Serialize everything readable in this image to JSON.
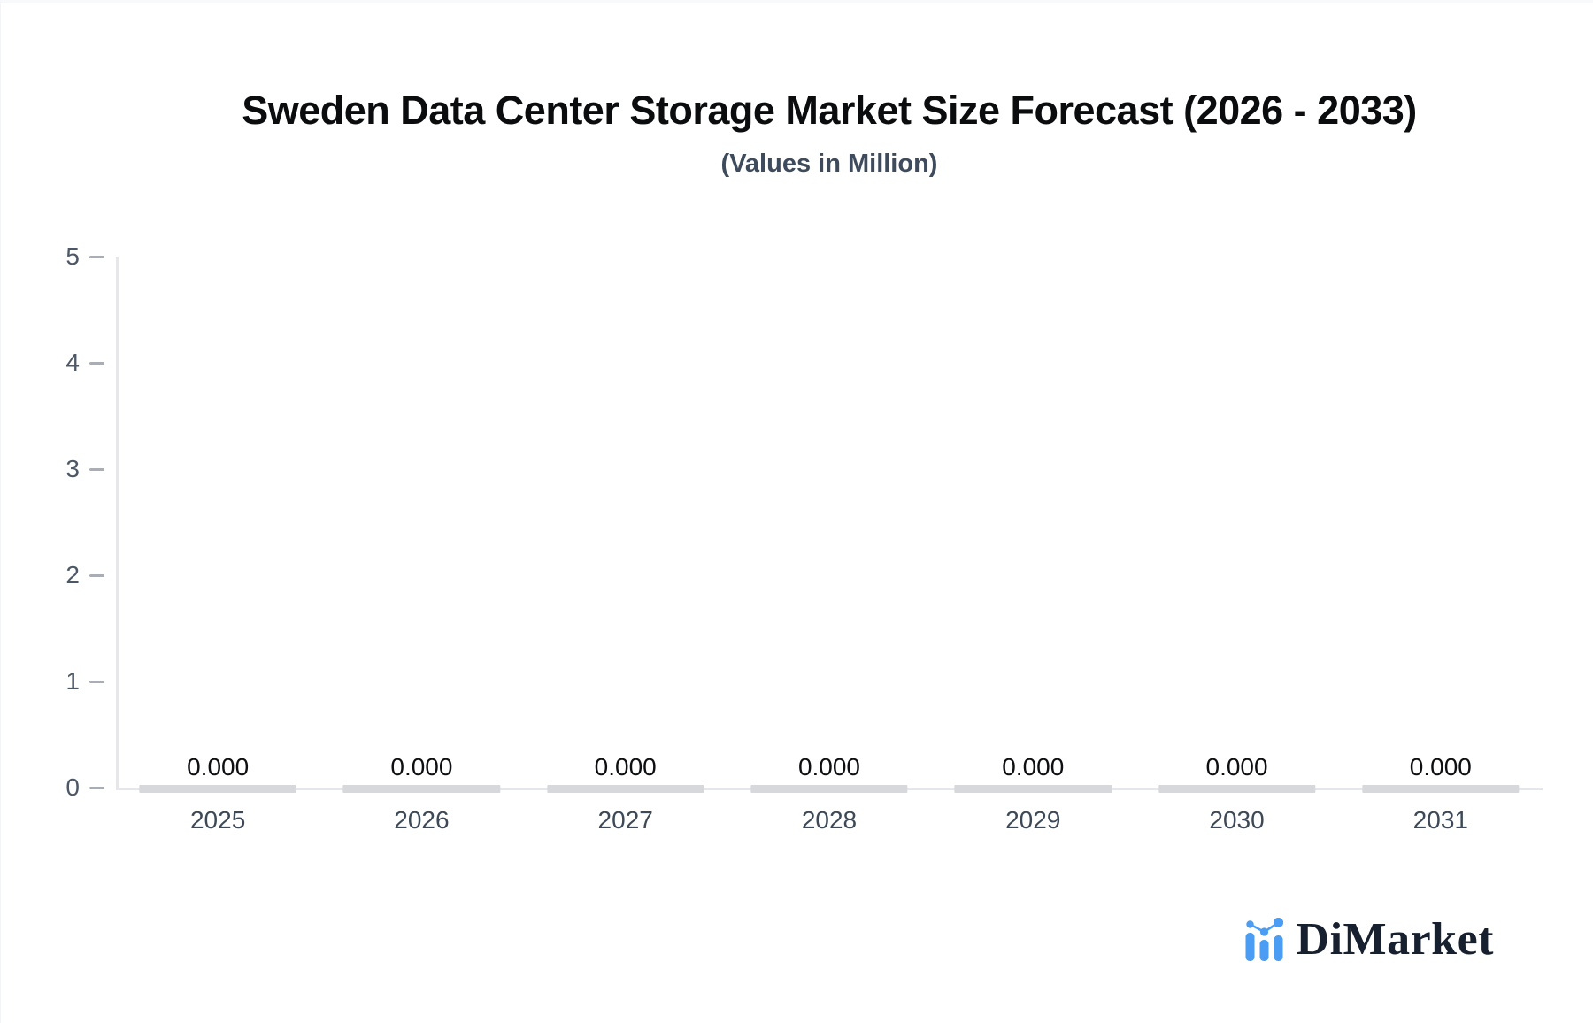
{
  "header": {
    "title": "Sweden Data Center Storage Market Size Forecast (2026 - 2033)",
    "subtitle": "(Values in Million)"
  },
  "chart_data": {
    "type": "bar",
    "title": "Sweden Data Center Storage Market Size Forecast (2026 - 2033)",
    "subtitle": "(Values in Million)",
    "categories": [
      "2025",
      "2026",
      "2027",
      "2028",
      "2029",
      "2030",
      "2031"
    ],
    "values": [
      0,
      0,
      0,
      0,
      0,
      0,
      0
    ],
    "value_labels": [
      "0.000",
      "0.000",
      "0.000",
      "0.000",
      "0.000",
      "0.000",
      "0.000"
    ],
    "xlabel": "",
    "ylabel": "",
    "ylim": [
      0,
      5
    ],
    "yticks": [
      0,
      1,
      2,
      3,
      4,
      5
    ],
    "grid": false,
    "legend": false,
    "bar_color": "#d6d8db",
    "axis_color": "#e5e7eb",
    "tick_color": "#a8aeb8"
  },
  "branding": {
    "logo_text": "DiMarket",
    "logo_icon": "bar-line-chart-icon",
    "logo_blue": "#4a9df3",
    "logo_text_color": "#17202f"
  }
}
